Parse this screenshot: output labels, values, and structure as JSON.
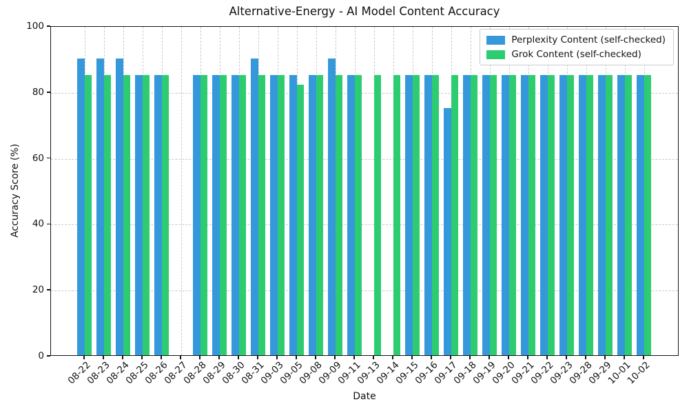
{
  "figure": {
    "background_color": "#ffffff",
    "axis_color": "#111111",
    "grid_color": "#c9c9c9"
  },
  "chart_data": {
    "type": "bar",
    "title": "Alternative-Energy - AI Model Content Accuracy",
    "xlabel": "Date",
    "ylabel": "Accuracy Score (%)",
    "ylim": [
      0,
      100
    ],
    "yticks": [
      0,
      20,
      40,
      60,
      80,
      100
    ],
    "grid": true,
    "grid_style": "dashed",
    "legend_position": "upper right",
    "categories": [
      "08-22",
      "08-23",
      "08-24",
      "08-25",
      "08-26",
      "08-27",
      "08-28",
      "08-29",
      "08-30",
      "08-31",
      "09-03",
      "09-05",
      "09-08",
      "09-09",
      "09-11",
      "09-13",
      "09-14",
      "09-15",
      "09-16",
      "09-17",
      "09-18",
      "09-19",
      "09-20",
      "09-21",
      "09-22",
      "09-23",
      "09-28",
      "09-29",
      "10-01",
      "10-02"
    ],
    "series": [
      {
        "name": "Perplexity Content (self-checked)",
        "color": "#3498db",
        "values": [
          90,
          90,
          90,
          85,
          85,
          null,
          85,
          85,
          85,
          90,
          85,
          85,
          85,
          90,
          85,
          null,
          null,
          85,
          85,
          75,
          85,
          85,
          85,
          85,
          85,
          85,
          85,
          85,
          85,
          85
        ]
      },
      {
        "name": "Grok Content (self-checked)",
        "color": "#2ecc71",
        "values": [
          85,
          85,
          85,
          85,
          85,
          null,
          85,
          85,
          85,
          85,
          85,
          82,
          85,
          85,
          85,
          85,
          85,
          85,
          85,
          85,
          85,
          85,
          85,
          85,
          85,
          85,
          85,
          85,
          85,
          85
        ]
      }
    ]
  }
}
